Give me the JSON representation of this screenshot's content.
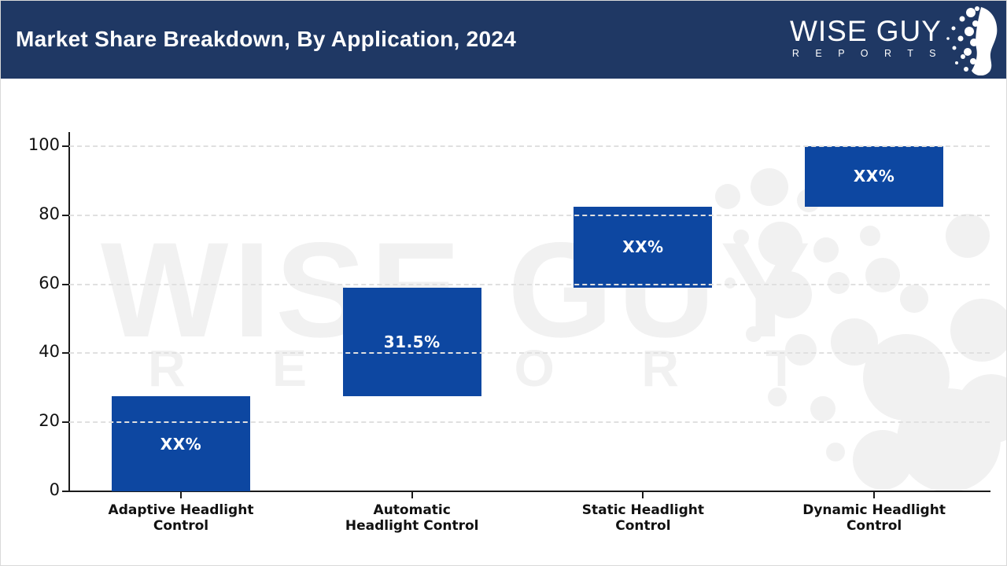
{
  "header": {
    "title": "Market Share Breakdown, By Application, 2024",
    "logo_line1": "WISE GUY",
    "logo_line2": "R E P O R T S"
  },
  "watermark": {
    "line1": "WISE GUY",
    "line2": "R E P O R T S"
  },
  "colors": {
    "header_bg": "#1f3864",
    "bar": "#0d47a1",
    "bar_label": "#ffffff",
    "grid": "#e0e0e0",
    "axis": "#1a1a1a",
    "watermark": "#f1f1f1"
  },
  "chart_data": {
    "type": "bar",
    "subtype": "floating-waterfall",
    "title": "Market Share Breakdown, By Application, 2024",
    "categories": [
      "Adaptive Headlight Control",
      "Automatic Headlight Control",
      "Static Headlight Control",
      "Dynamic Headlight Control"
    ],
    "category_lines": [
      [
        "Adaptive Headlight",
        "Control"
      ],
      [
        "Automatic",
        "Headlight Control"
      ],
      [
        "Static Headlight",
        "Control"
      ],
      [
        "Dynamic Headlight",
        "Control"
      ]
    ],
    "segments": [
      {
        "category": "Adaptive Headlight Control",
        "start": 0,
        "end": 27.5,
        "label": "XX%"
      },
      {
        "category": "Automatic Headlight Control",
        "start": 27.5,
        "end": 59,
        "label": "31.5%"
      },
      {
        "category": "Static Headlight Control",
        "start": 59,
        "end": 82.5,
        "label": "XX%"
      },
      {
        "category": "Dynamic Headlight Control",
        "start": 82.5,
        "end": 100,
        "label": "XX%"
      }
    ],
    "xlabel": "",
    "ylabel": "",
    "yticks": [
      0,
      20,
      40,
      60,
      80,
      100
    ],
    "ylim": [
      0,
      104
    ],
    "grid": "horizontal-dashed",
    "legend": "none"
  }
}
